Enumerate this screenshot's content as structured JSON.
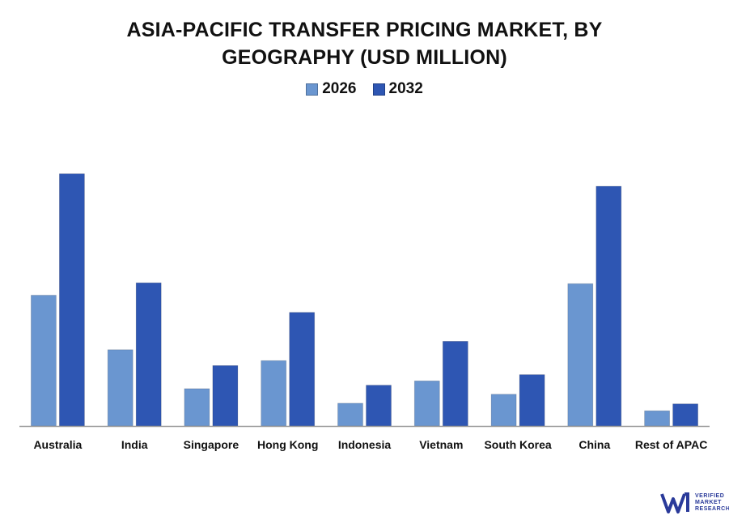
{
  "chart_data": {
    "type": "bar",
    "title_lines": [
      "ASIA-PACIFIC TRANSFER PRICING MARKET, BY",
      "GEOGRAPHY (USD MILLION)"
    ],
    "categories": [
      "Australia",
      "India",
      "Singapore",
      "Hong Kong",
      "Indonesia",
      "Vietnam",
      "South Korea",
      "China",
      "Rest of APAC"
    ],
    "series": [
      {
        "name": "2026",
        "color": "#6a96d0",
        "values": [
          42,
          24.5,
          12,
          21,
          7.3,
          14.5,
          10.2,
          45.7,
          4.9
        ]
      },
      {
        "name": "2032",
        "color": "#2e56b3",
        "values": [
          81,
          46,
          19.4,
          36.5,
          13.1,
          27.2,
          16.5,
          77,
          7.1
        ]
      }
    ],
    "ylim": [
      0,
      90
    ],
    "xlabel": "",
    "ylabel": "",
    "grid": false,
    "legend_position": "top-center"
  },
  "logo": {
    "lines": [
      "VERIFIED",
      "MARKET",
      "RESEARCH"
    ],
    "color": "#2a3a9a"
  }
}
